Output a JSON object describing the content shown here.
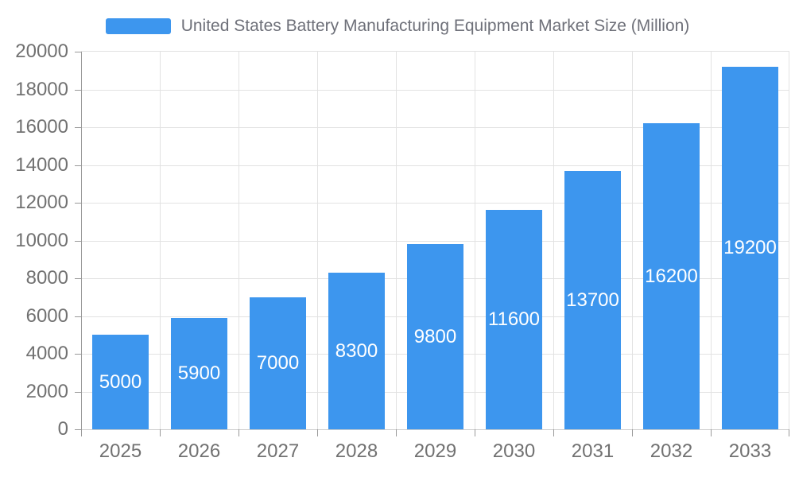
{
  "chart_data": {
    "type": "bar",
    "title": "United States Battery Manufacturing Equipment Market Size (Million)",
    "categories": [
      "2025",
      "2026",
      "2027",
      "2028",
      "2029",
      "2030",
      "2031",
      "2032",
      "2033"
    ],
    "values": [
      5000,
      5900,
      7000,
      8300,
      9800,
      11600,
      13700,
      16200,
      19200
    ],
    "xlabel": "",
    "ylabel": "",
    "ylim": [
      0,
      20000
    ],
    "ytick_interval": 2000,
    "yticks": [
      0,
      2000,
      4000,
      6000,
      8000,
      10000,
      12000,
      14000,
      16000,
      18000,
      20000
    ],
    "legend_position": "top-center",
    "grid": "horizontal and vertical light gray gridlines",
    "bar_label_position": "inside-center"
  },
  "legend": {
    "label": "United States Battery Manufacturing Equipment Market Size (Million)"
  },
  "colors": {
    "bar": "#3D96EE",
    "bar_label_text": "#FFFFFF",
    "axis_text": "#717171",
    "title_text": "#6E7079",
    "grid_line": "#E2E2E2",
    "axis_line": "#999999",
    "baseline": "#CCCCCC"
  }
}
